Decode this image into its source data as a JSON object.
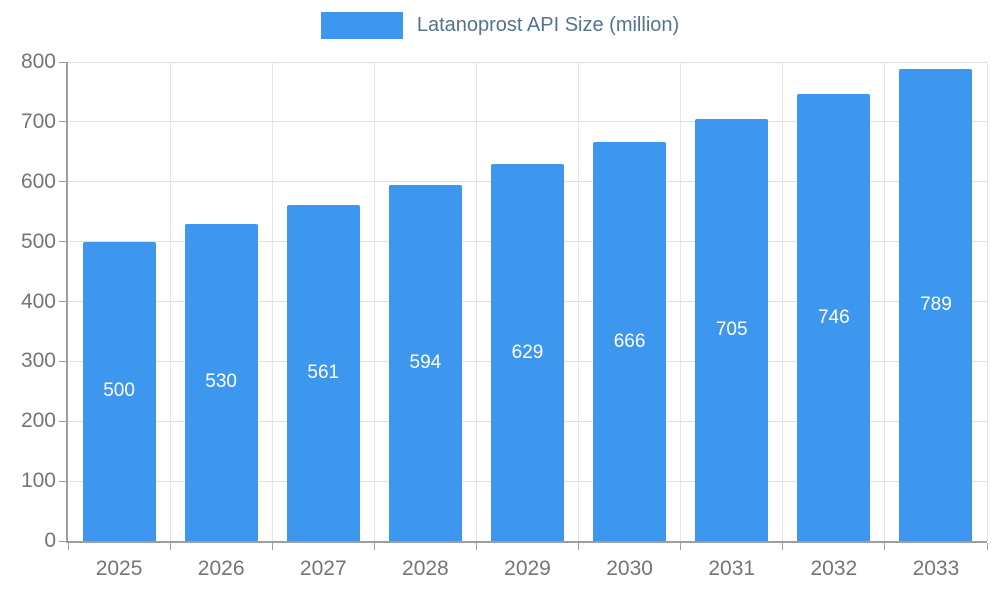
{
  "chart_data": {
    "type": "bar",
    "title": "Latanoprost API Size (million)",
    "legend": {
      "label": "Latanoprost API Size (million)",
      "position": "top-center"
    },
    "categories": [
      "2025",
      "2026",
      "2027",
      "2028",
      "2029",
      "2030",
      "2031",
      "2032",
      "2033"
    ],
    "series": [
      {
        "name": "Latanoprost API Size (million)",
        "values": [
          500,
          530,
          561,
          594,
          629,
          666,
          705,
          746,
          789
        ]
      }
    ],
    "xlabel": "",
    "ylabel": "",
    "ylim": [
      0,
      800
    ],
    "ytick_step": 100,
    "yticks": [
      0,
      100,
      200,
      300,
      400,
      500,
      600,
      700,
      800
    ],
    "grid": "horizontal-and-vertical",
    "data_labels": "inside-center, white",
    "colors": {
      "bar": "#3d97ee",
      "bar_label": "#ffffff",
      "axis_line": "#9e9e9e",
      "tick_text": "#757575",
      "gridline": "#e0e0e0",
      "legend_text": "#54738e",
      "background": "#ffffff"
    }
  }
}
